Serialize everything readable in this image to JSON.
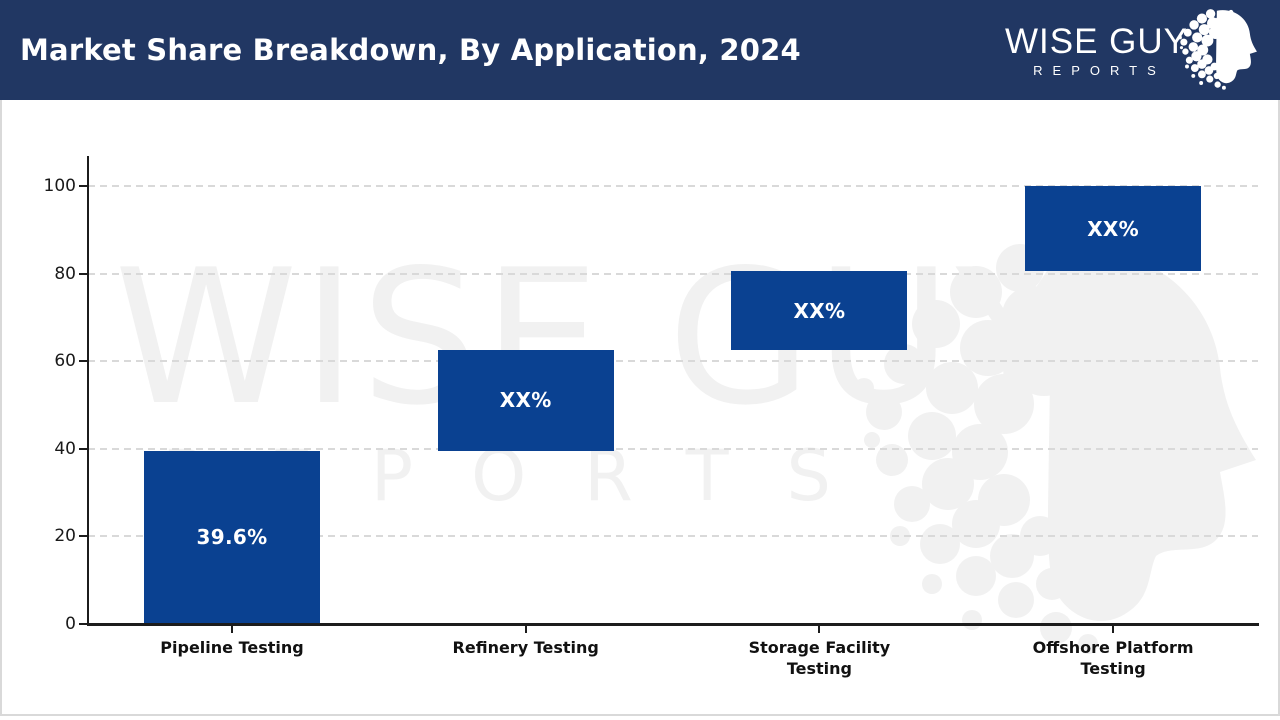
{
  "header": {
    "title": "Market Share Breakdown, By Application, 2024",
    "logo": {
      "line1": "WISE GUY",
      "line2": "REPORTS"
    }
  },
  "watermark": {
    "line1": "WISE GUY",
    "line2": "REPORTS"
  },
  "chart_data": {
    "type": "bar",
    "subtype": "waterfall",
    "title": "Market Share Breakdown, By Application, 2024",
    "categories": [
      "Pipeline Testing",
      "Refinery Testing",
      "Storage Facility Testing",
      "Offshore Platform Testing"
    ],
    "series": [
      {
        "name": "Market Share",
        "segments": [
          {
            "category": "Pipeline Testing",
            "start": 0,
            "end": 39.6,
            "label": "39.6%"
          },
          {
            "category": "Refinery Testing",
            "start": 39.6,
            "end": 62.5,
            "label": "XX%"
          },
          {
            "category": "Storage Facility Testing",
            "start": 62.5,
            "end": 80.5,
            "label": "XX%"
          },
          {
            "category": "Offshore Platform Testing",
            "start": 80.5,
            "end": 100,
            "label": "XX%"
          }
        ]
      }
    ],
    "xlabel": "",
    "ylabel": "",
    "ylim": [
      0,
      100
    ],
    "yticks": [
      0,
      20,
      40,
      60,
      80,
      100
    ],
    "grid": "dashed-horizontal",
    "legend": "none",
    "bar_color": "#0a4191",
    "bar_label_color": "#ffffff"
  },
  "colors": {
    "header_bg": "#213763",
    "header_text": "#ffffff",
    "bar": "#0a4191",
    "gridline": "#d9d9d9",
    "axis": "#1c1c1c",
    "watermark": "#f1f1f1"
  }
}
